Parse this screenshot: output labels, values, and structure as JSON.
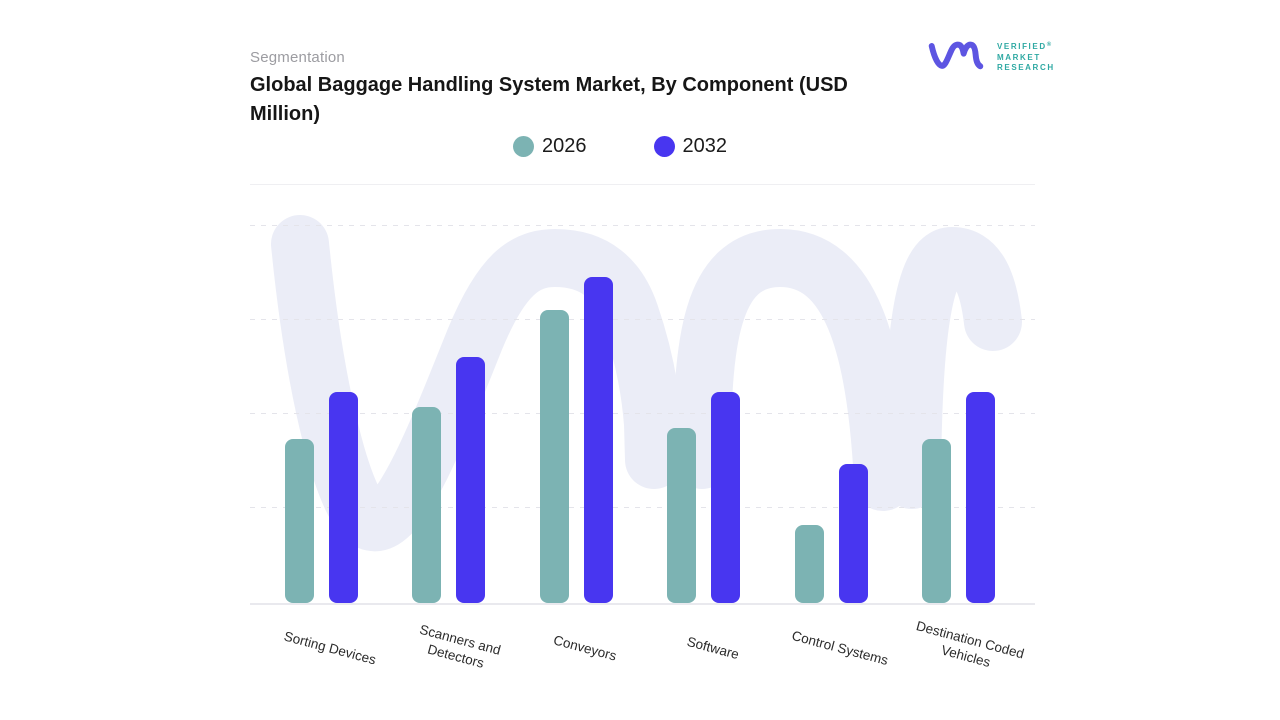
{
  "header": {
    "eyebrow": "Segmentation",
    "title": "Global Baggage Handling System Market, By Component (USD Million)"
  },
  "brand": {
    "glyph": "vm-monogram",
    "name_lines": [
      "VERIFIED",
      "MARKET",
      "RESEARCH"
    ],
    "registered": "®",
    "glyph_color": "#5d55e2",
    "text_color": "#2fa9a3"
  },
  "chart_data": {
    "type": "bar",
    "title": "Global Baggage Handling System Market, By Component (USD Million)",
    "unit": "USD Million",
    "categories": [
      "Sorting Devices",
      "Scanners and Detectors",
      "Conveyors",
      "Software",
      "Control Systems",
      "Destination Coded Vehicles"
    ],
    "category_label_lines": [
      [
        "Sorting Devices"
      ],
      [
        "Scanners and",
        "Detectors"
      ],
      [
        "Conveyors"
      ],
      [
        "Software"
      ],
      [
        "Control Systems"
      ],
      [
        "Destination Coded",
        "Vehicles"
      ]
    ],
    "series": [
      {
        "name": "2026",
        "color": "#7cb3b3",
        "values": [
          39,
          46.5,
          69.5,
          41.5,
          18.5,
          39
        ]
      },
      {
        "name": "2032",
        "color": "#4836f0",
        "values": [
          50,
          58.5,
          77.5,
          50,
          33,
          50
        ]
      }
    ],
    "xlabel": "",
    "ylabel": "",
    "ylim": [
      0,
      100
    ],
    "y_axis_tick_labels_visible": false,
    "grid": "horizontal-dashed",
    "legend_position": "top-center",
    "note": "Bar values are relative estimates (0-100 of plot height); the source chart shows no numeric axis or data labels."
  },
  "watermark": {
    "name": "vm-watermark",
    "color": "#ebedf7"
  }
}
